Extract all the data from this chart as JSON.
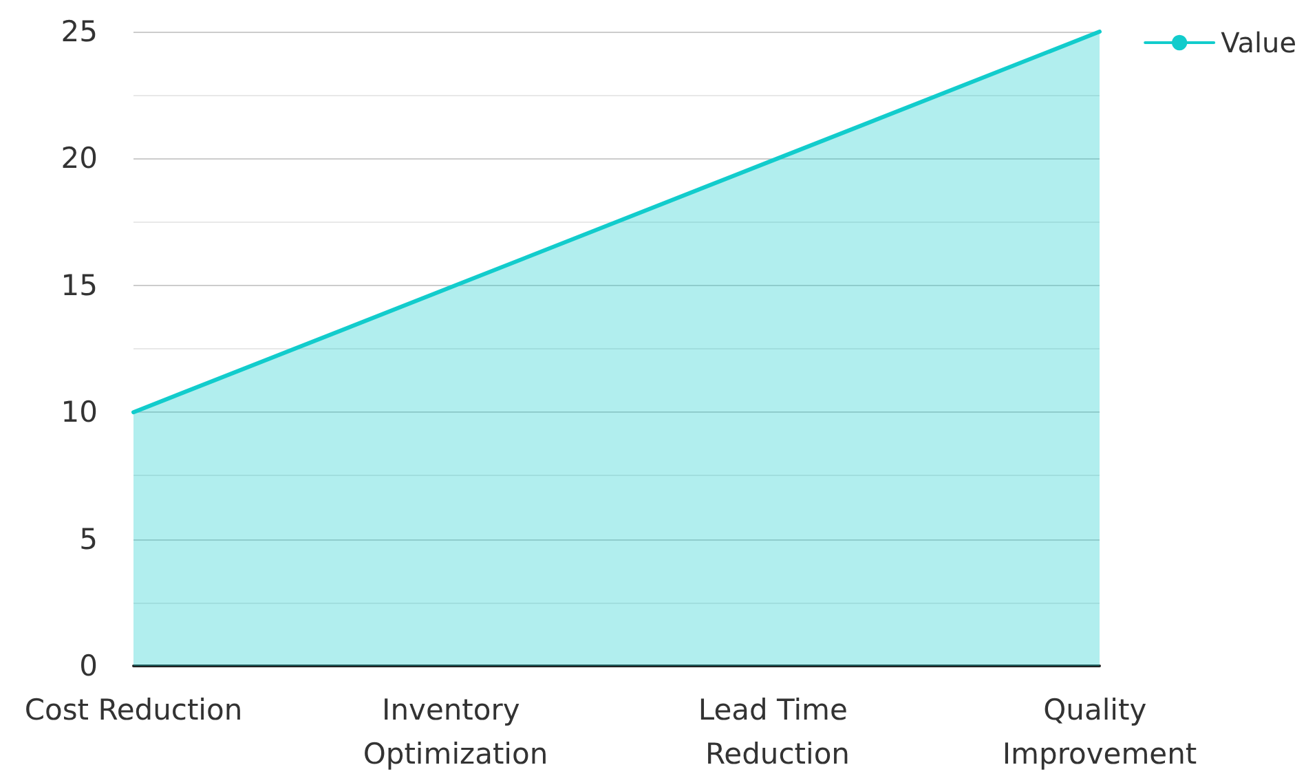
{
  "chart_data": {
    "type": "area",
    "categories": [
      "Cost Reduction",
      "Inventory Optimization",
      "Lead Time Reduction",
      "Quality Improvement"
    ],
    "series": [
      {
        "name": "Value",
        "color": "#12cccc",
        "values": [
          10,
          15,
          20,
          25
        ]
      }
    ],
    "ylim": [
      0,
      25
    ],
    "yticks": [
      0,
      5,
      10,
      15,
      20,
      25
    ],
    "grid": "y",
    "legend": "top right",
    "marker": "none"
  }
}
